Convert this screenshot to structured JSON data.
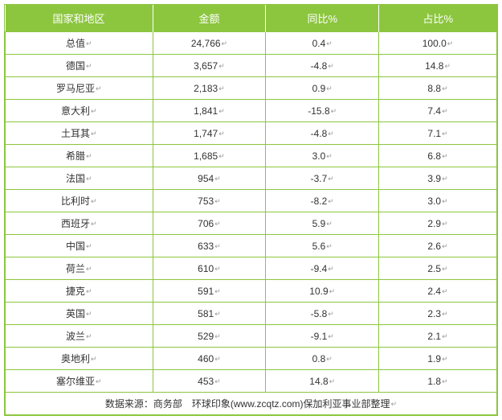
{
  "table": {
    "type": "table",
    "header_bg_color": "#8cc63f",
    "header_text_color": "#ffffff",
    "border_color": "#8cc63f",
    "cell_text_color": "#333333",
    "header_fontsize": 13,
    "cell_fontsize": 12,
    "columns": [
      "国家和地区",
      "金额",
      "同比%",
      "占比%"
    ],
    "column_widths": [
      "30%",
      "23%",
      "23%",
      "24%"
    ],
    "column_align": [
      "center",
      "center",
      "center",
      "center"
    ],
    "rows": [
      [
        "总值",
        "24,766",
        "0.4",
        "100.0"
      ],
      [
        "德国",
        "3,657",
        "-4.8",
        "14.8"
      ],
      [
        "罗马尼亚",
        "2,183",
        "0.9",
        "8.8"
      ],
      [
        "意大利",
        "1,841",
        "-15.8",
        "7.4"
      ],
      [
        "土耳其",
        "1,747",
        "-4.8",
        "7.1"
      ],
      [
        "希腊",
        "1,685",
        "3.0",
        "6.8"
      ],
      [
        "法国",
        "954",
        "-3.7",
        "3.9"
      ],
      [
        "比利时",
        "753",
        "-8.2",
        "3.0"
      ],
      [
        "西班牙",
        "706",
        "5.9",
        "2.9"
      ],
      [
        "中国",
        "633",
        "5.6",
        "2.6"
      ],
      [
        "荷兰",
        "610",
        "-9.4",
        "2.5"
      ],
      [
        "捷克",
        "591",
        "10.9",
        "2.4"
      ],
      [
        "英国",
        "581",
        "-5.8",
        "2.3"
      ],
      [
        "波兰",
        "529",
        "-9.1",
        "2.1"
      ],
      [
        "奥地利",
        "460",
        "0.8",
        "1.9"
      ],
      [
        "塞尔维亚",
        "453",
        "14.8",
        "1.8"
      ]
    ],
    "footer": "数据来源：商务部　环球印象(www.zcqtz.com)保加利亚事业部整理"
  }
}
